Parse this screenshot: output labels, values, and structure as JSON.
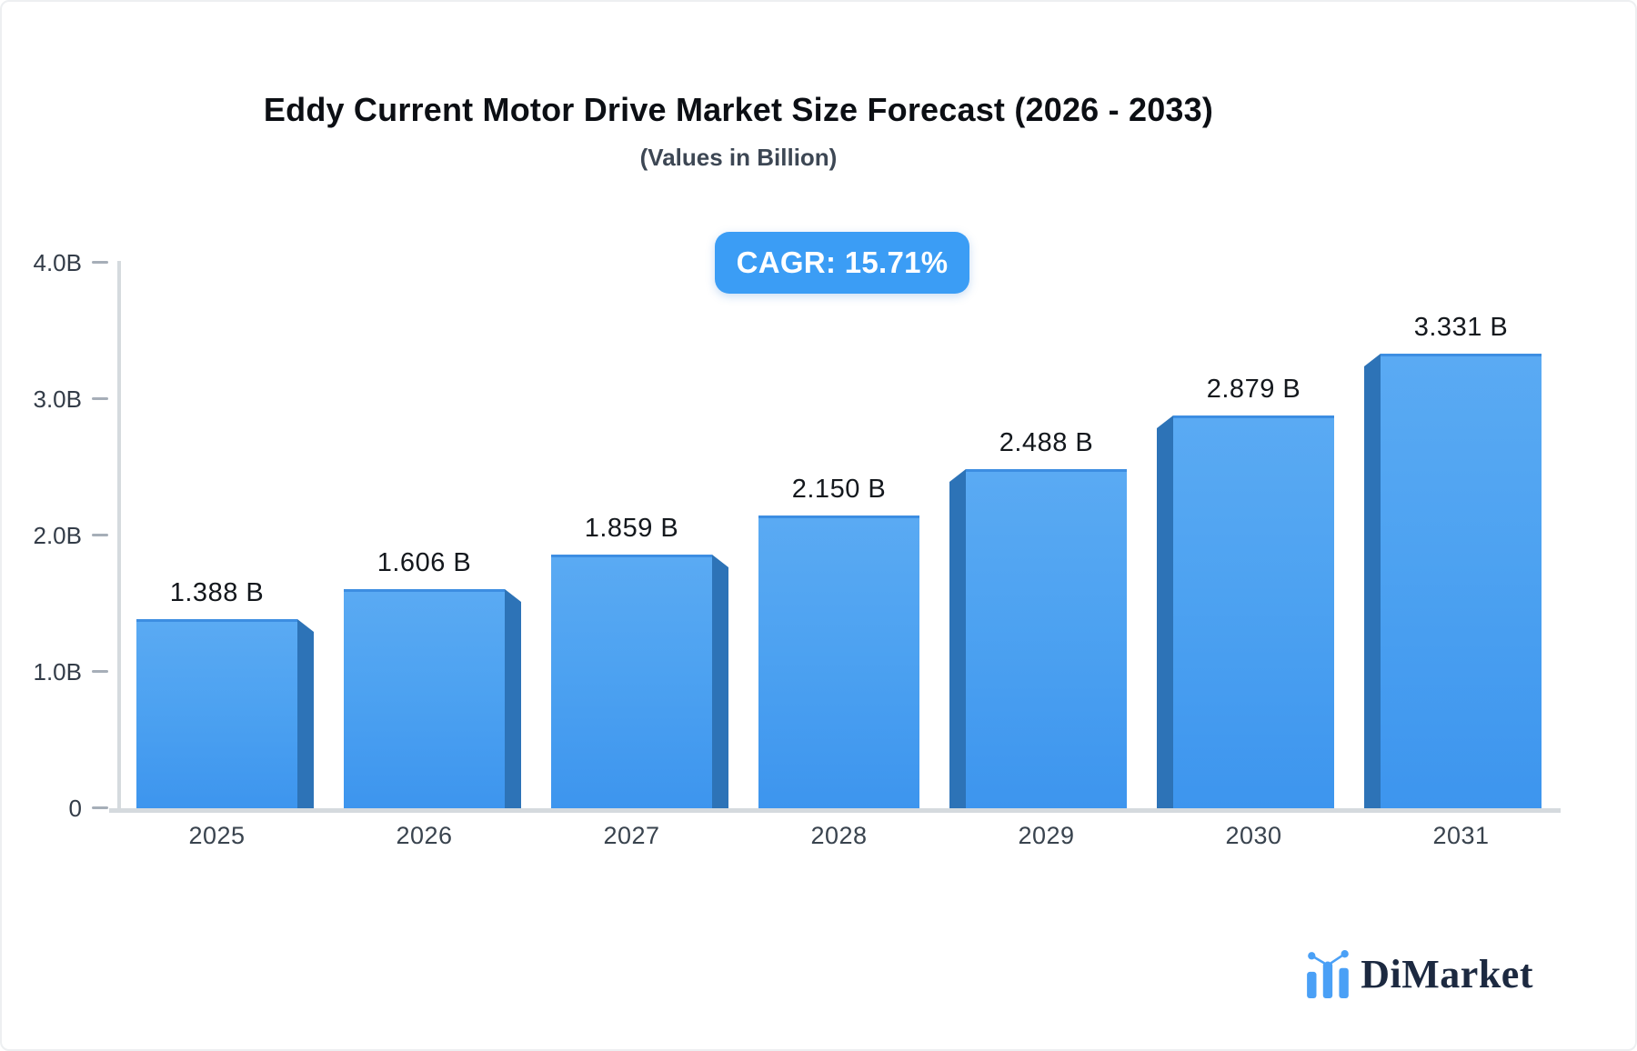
{
  "header": {
    "title": "Eddy Current Motor Drive Market Size Forecast (2026 - 2033)",
    "subtitle": "(Values in Billion)"
  },
  "badge": {
    "label": "CAGR: 15.71%"
  },
  "chart_data": {
    "type": "bar",
    "title": "Eddy Current Motor Drive Market Size Forecast (2026 - 2033)",
    "subtitle": "(Values in Billion)",
    "categories": [
      "2025",
      "2026",
      "2027",
      "2028",
      "2029",
      "2030",
      "2031"
    ],
    "values": [
      1.388,
      1.606,
      1.859,
      2.15,
      2.488,
      2.879,
      3.331
    ],
    "value_labels": [
      "1.388 B",
      "1.606 B",
      "1.859 B",
      "2.150 B",
      "2.488 B",
      "2.879 B",
      "3.331 B"
    ],
    "y_ticks": [
      {
        "label": "4.0B",
        "value": 4.0
      },
      {
        "label": "3.0B",
        "value": 3.0
      },
      {
        "label": "2.0B",
        "value": 2.0
      },
      {
        "label": "1.0B",
        "value": 1.0
      },
      {
        "label": "0",
        "value": 0.0
      }
    ],
    "ylim": [
      0,
      4
    ],
    "xlabel": "",
    "ylabel": "",
    "grid": false,
    "legend": null,
    "annotations": [
      "CAGR: 15.71%"
    ]
  },
  "colors": {
    "bar_face_top": "#5aaaf3",
    "bar_face_bottom": "#3d95ee",
    "bar_side": "#2d73b7",
    "bar_top_edge": "#3d8ee2",
    "badge_bg": "#3b9df5",
    "badge_text": "#ffffff",
    "axis_line": "#d5dade",
    "tick_mark": "#a6aeb8",
    "logo_blue": "#4aa0f6",
    "logo_navy": "#1c2940"
  },
  "logo": {
    "brand": "DiMarket"
  }
}
